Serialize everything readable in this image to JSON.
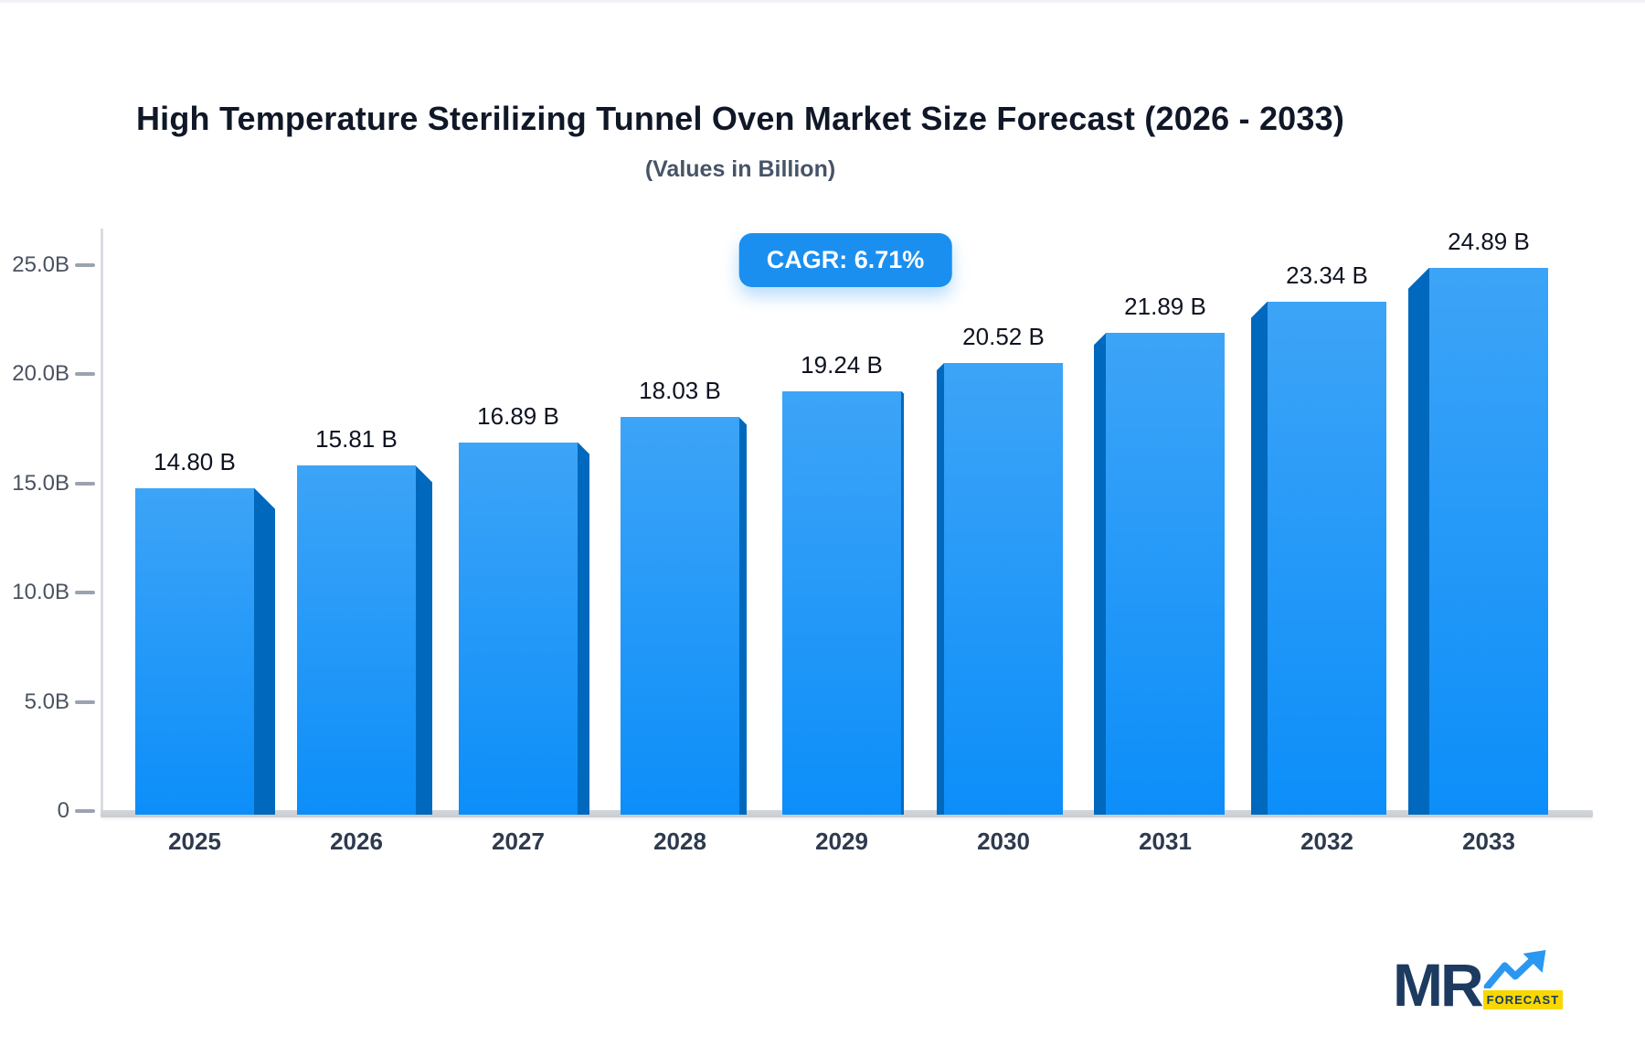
{
  "title": "High Temperature Sterilizing Tunnel Oven Market Size Forecast (2026 - 2033)",
  "subtitle": "(Values in Billion)",
  "cagr_badge": "CAGR: 6.71%",
  "chart_data": {
    "type": "bar",
    "title": "High Temperature Sterilizing Tunnel Oven Market Size Forecast (2026 - 2033)",
    "subtitle": "(Values in Billion)",
    "cagr": "6.71%",
    "categories": [
      "2025",
      "2026",
      "2027",
      "2028",
      "2029",
      "2030",
      "2031",
      "2032",
      "2033"
    ],
    "values": [
      14.8,
      15.81,
      16.89,
      18.03,
      19.24,
      20.52,
      21.89,
      23.34,
      24.89
    ],
    "value_labels": [
      "14.80 B",
      "15.81 B",
      "16.89 B",
      "18.03 B",
      "19.24 B",
      "20.52 B",
      "21.89 B",
      "23.34 B",
      "24.89 B"
    ],
    "xlabel": "",
    "ylabel": "",
    "ylim": [
      0,
      25
    ],
    "y_ticks": [
      {
        "value": 25,
        "label": "25.0B"
      },
      {
        "value": 20,
        "label": "20.0B"
      },
      {
        "value": 15,
        "label": "15.0B"
      },
      {
        "value": 10,
        "label": "10.0B"
      },
      {
        "value": 5,
        "label": "5.0B"
      },
      {
        "value": 0,
        "label": "0"
      }
    ],
    "grid": false,
    "legend_position": "none",
    "bar_style": "3d-perspective",
    "colors": {
      "bar_face_top": "#3da4f7",
      "bar_face_bottom": "#0c8ef9",
      "bar_side": "#0069bd",
      "badge_bg": "#1a8ff0",
      "badge_text": "#ffffff",
      "floor": "#ced3d9",
      "axis_line": "#d9dce2",
      "tick_dash": "#9aa3af",
      "y_label": "#4a5260",
      "x_label": "#2e3a4e",
      "value_label": "#0e1320",
      "title": "#101828",
      "subtitle": "#475467"
    }
  },
  "logo": {
    "mr": "MR",
    "forecast": "FORECAST",
    "navy": "#1d3a60",
    "yellow": "#f8d800",
    "arrow_blue": "#2b97f1"
  }
}
